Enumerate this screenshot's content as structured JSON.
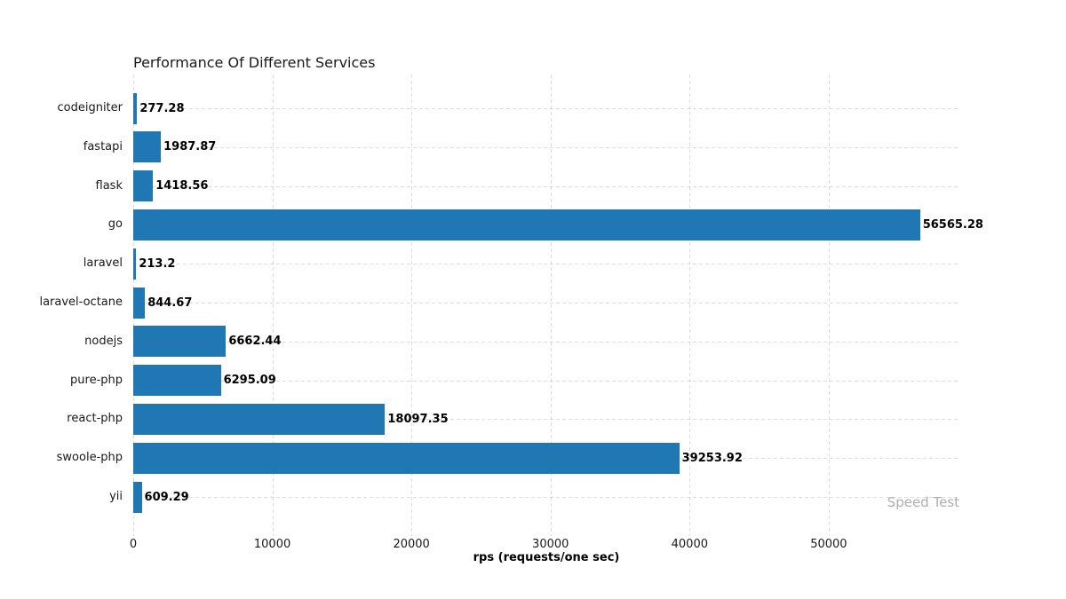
{
  "chart_data": {
    "type": "bar",
    "orientation": "horizontal",
    "title": "Performance Of Different Services",
    "xlabel": "rps (requests/one sec)",
    "watermark": "Speed Test",
    "categories": [
      "codeigniter",
      "fastapi",
      "flask",
      "go",
      "laravel",
      "laravel-octane",
      "nodejs",
      "pure-php",
      "react-php",
      "swoole-php",
      "yii"
    ],
    "values": [
      277.28,
      1987.87,
      1418.56,
      56565.28,
      213.2,
      844.67,
      6662.44,
      6295.09,
      18097.35,
      39253.92,
      609.29
    ],
    "value_labels": [
      "277.28",
      "1987.87",
      "1418.56",
      "56565.28",
      "213.2",
      "844.67",
      "6662.44",
      "6295.09",
      "18097.35",
      "39253.92",
      "609.29"
    ],
    "x_ticks": [
      0,
      10000,
      20000,
      30000,
      40000,
      50000
    ],
    "x_tick_labels": [
      "0",
      "10000",
      "20000",
      "30000",
      "40000",
      "50000"
    ],
    "xlim": [
      0,
      59393.5
    ],
    "grid": true,
    "legend": null,
    "bar_color": "#1f77b4",
    "grid_color": "#dcdcdc",
    "title_color": "#1a1a1a",
    "watermark_color": "#aeaeae"
  }
}
